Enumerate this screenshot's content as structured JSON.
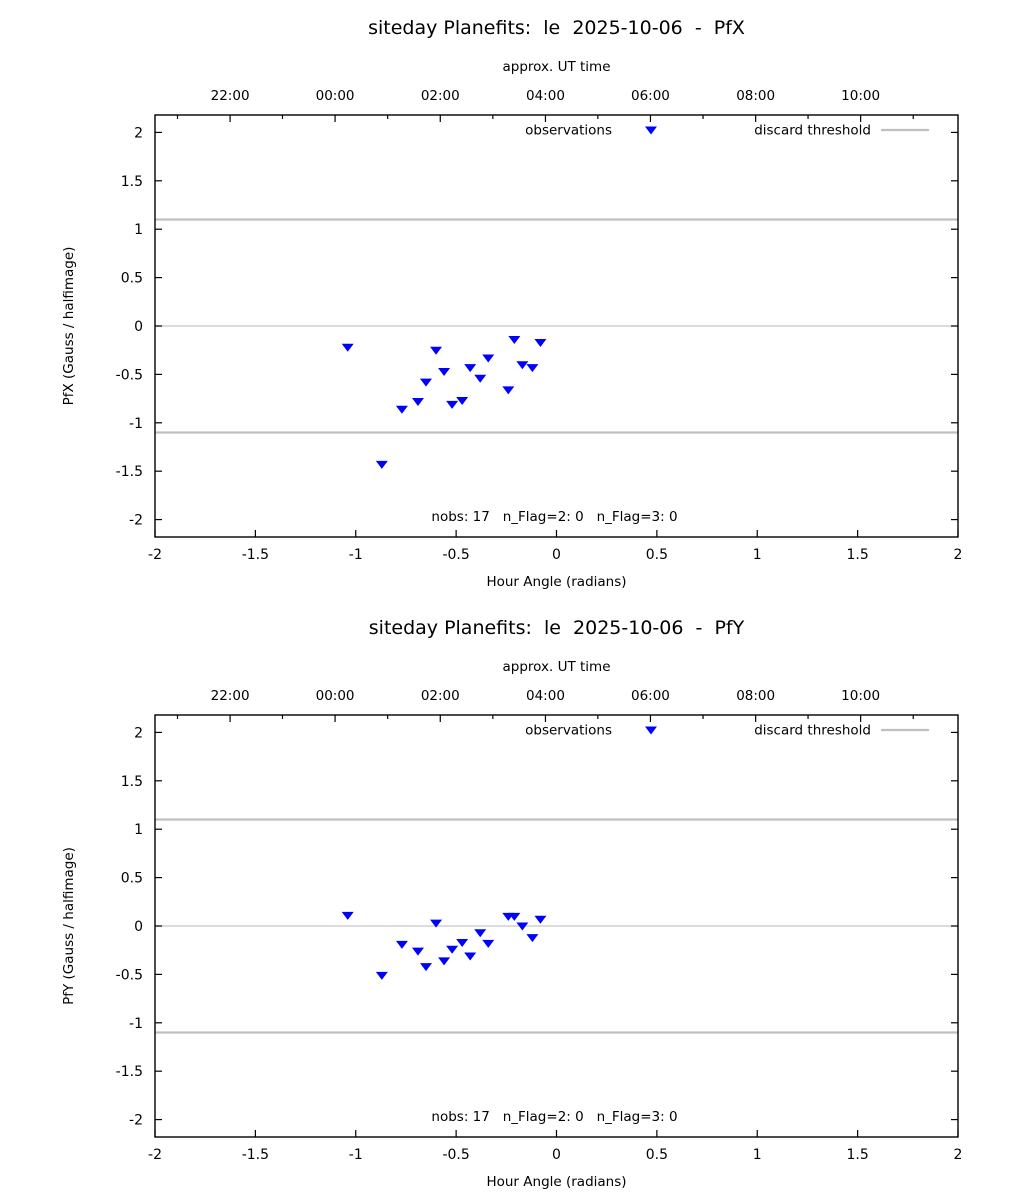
{
  "page": {
    "background": "#ffffff"
  },
  "colors": {
    "observations": "#0000ff",
    "discard_threshold": "#c0c0c0",
    "zero_line": "#c8c8c8",
    "axis": "#000000",
    "text": "#000000"
  },
  "chart_data": [
    {
      "type": "scatter",
      "title": "siteday Planefits:  le  2025-10-06  -  PfX",
      "x2label": "approx. UT time",
      "xlabel": "Hour Angle (radians)",
      "ylabel": "PfX (Gauss / halfimage)",
      "xlim": [
        -2,
        2
      ],
      "ylim": [
        -2.18,
        2.18
      ],
      "xticks": [
        -2,
        -1.5,
        -1,
        -0.5,
        0,
        0.5,
        1,
        1.5,
        2
      ],
      "xtick_labels": [
        "-2",
        "-1.5",
        "-1",
        "-0.5",
        "0",
        "0.5",
        "1",
        "1.5",
        "2"
      ],
      "yticks": [
        2,
        1.5,
        1,
        0.5,
        0,
        -0.5,
        -1,
        -1.5,
        -2
      ],
      "ytick_labels": [
        "2",
        "1.5",
        "1",
        "0.5",
        "0",
        "-0.5",
        "-1",
        "-1.5",
        "-2"
      ],
      "x2tick_labels": [
        "22:00",
        "00:00",
        "02:00",
        "04:00",
        "06:00",
        "08:00",
        "10:00"
      ],
      "x2tick_positions": [
        -1.626,
        -1.103,
        -0.579,
        -0.055,
        0.468,
        0.992,
        1.515
      ],
      "x2tick_minor_positions": [
        -1.888,
        -1.365,
        -0.841,
        -0.317,
        0.206,
        0.73,
        1.253,
        1.777
      ],
      "grid": false,
      "zero_line_y": 0,
      "discard_thresholds": [
        1.1,
        -1.1
      ],
      "legend": {
        "position": "top-inside",
        "entries": [
          {
            "label": "observations",
            "sample": "marker"
          },
          {
            "label": "discard threshold",
            "sample": "line"
          }
        ]
      },
      "annotation": "nobs: 17   n_Flag=2: 0   n_Flag=3: 0",
      "series": [
        {
          "name": "observations",
          "marker": "triangle-down",
          "color": "#0000ff",
          "points": [
            [
              -1.04,
              -0.22
            ],
            [
              -0.87,
              -1.43
            ],
            [
              -0.77,
              -0.86
            ],
            [
              -0.69,
              -0.78
            ],
            [
              -0.65,
              -0.58
            ],
            [
              -0.6,
              -0.25
            ],
            [
              -0.56,
              -0.47
            ],
            [
              -0.52,
              -0.81
            ],
            [
              -0.47,
              -0.77
            ],
            [
              -0.43,
              -0.43
            ],
            [
              -0.38,
              -0.54
            ],
            [
              -0.34,
              -0.33
            ],
            [
              -0.24,
              -0.66
            ],
            [
              -0.21,
              -0.14
            ],
            [
              -0.17,
              -0.4
            ],
            [
              -0.12,
              -0.43
            ],
            [
              -0.08,
              -0.17
            ]
          ]
        }
      ]
    },
    {
      "type": "scatter",
      "title": "siteday Planefits:  le  2025-10-06  -  PfY",
      "x2label": "approx. UT time",
      "xlabel": "Hour Angle (radians)",
      "ylabel": "PfY (Gauss / halfimage)",
      "xlim": [
        -2,
        2
      ],
      "ylim": [
        -2.18,
        2.18
      ],
      "xticks": [
        -2,
        -1.5,
        -1,
        -0.5,
        0,
        0.5,
        1,
        1.5,
        2
      ],
      "xtick_labels": [
        "-2",
        "-1.5",
        "-1",
        "-0.5",
        "0",
        "0.5",
        "1",
        "1.5",
        "2"
      ],
      "yticks": [
        2,
        1.5,
        1,
        0.5,
        0,
        -0.5,
        -1,
        -1.5,
        -2
      ],
      "ytick_labels": [
        "2",
        "1.5",
        "1",
        "0.5",
        "0",
        "-0.5",
        "-1",
        "-1.5",
        "-2"
      ],
      "x2tick_labels": [
        "22:00",
        "00:00",
        "02:00",
        "04:00",
        "06:00",
        "08:00",
        "10:00"
      ],
      "x2tick_positions": [
        -1.626,
        -1.103,
        -0.579,
        -0.055,
        0.468,
        0.992,
        1.515
      ],
      "x2tick_minor_positions": [
        -1.888,
        -1.365,
        -0.841,
        -0.317,
        0.206,
        0.73,
        1.253,
        1.777
      ],
      "grid": false,
      "zero_line_y": 0,
      "discard_thresholds": [
        1.1,
        -1.1
      ],
      "legend": {
        "position": "top-inside",
        "entries": [
          {
            "label": "observations",
            "sample": "marker"
          },
          {
            "label": "discard threshold",
            "sample": "line"
          }
        ]
      },
      "annotation": "nobs: 17   n_Flag=2: 0   n_Flag=3: 0",
      "series": [
        {
          "name": "observations",
          "marker": "triangle-down",
          "color": "#0000ff",
          "points": [
            [
              -1.04,
              0.11
            ],
            [
              -0.87,
              -0.51
            ],
            [
              -0.77,
              -0.19
            ],
            [
              -0.69,
              -0.26
            ],
            [
              -0.65,
              -0.42
            ],
            [
              -0.6,
              0.03
            ],
            [
              -0.56,
              -0.36
            ],
            [
              -0.52,
              -0.24
            ],
            [
              -0.47,
              -0.17
            ],
            [
              -0.43,
              -0.31
            ],
            [
              -0.38,
              -0.07
            ],
            [
              -0.34,
              -0.18
            ],
            [
              -0.24,
              0.1
            ],
            [
              -0.21,
              0.1
            ],
            [
              -0.17,
              0.0
            ],
            [
              -0.12,
              -0.12
            ],
            [
              -0.08,
              0.07
            ]
          ]
        }
      ]
    }
  ]
}
